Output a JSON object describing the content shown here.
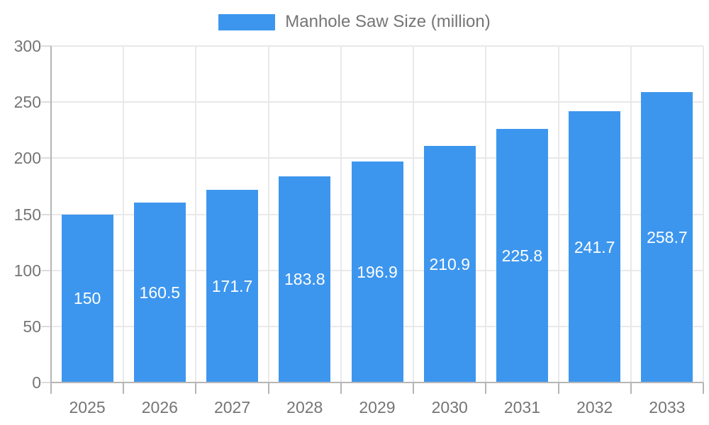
{
  "chart_data": {
    "type": "bar",
    "categories": [
      "2025",
      "2026",
      "2027",
      "2028",
      "2029",
      "2030",
      "2031",
      "2032",
      "2033"
    ],
    "series": [
      {
        "name": "Manhole Saw Size (million)",
        "values": [
          150,
          160.5,
          171.7,
          183.8,
          196.9,
          210.9,
          225.8,
          241.7,
          258.7
        ],
        "value_labels": [
          "150",
          "160.5",
          "171.7",
          "183.8",
          "196.9",
          "210.9",
          "225.8",
          "241.7",
          "258.7"
        ]
      }
    ],
    "xlabel": "",
    "ylabel": "",
    "ylim": [
      0,
      300
    ],
    "ytick_step": 50,
    "ytick_labels": [
      "0",
      "50",
      "100",
      "150",
      "200",
      "250",
      "300"
    ],
    "grid": true,
    "legend_position": "top",
    "bar_label_position": "center-inside",
    "colors": {
      "bar": "#3d96ee",
      "axis_text": "#757575",
      "bar_label_text": "#ffffff",
      "grid_line": "#e9e9e9",
      "axis_line": "#b5b5b5",
      "background": "#ffffff"
    }
  }
}
